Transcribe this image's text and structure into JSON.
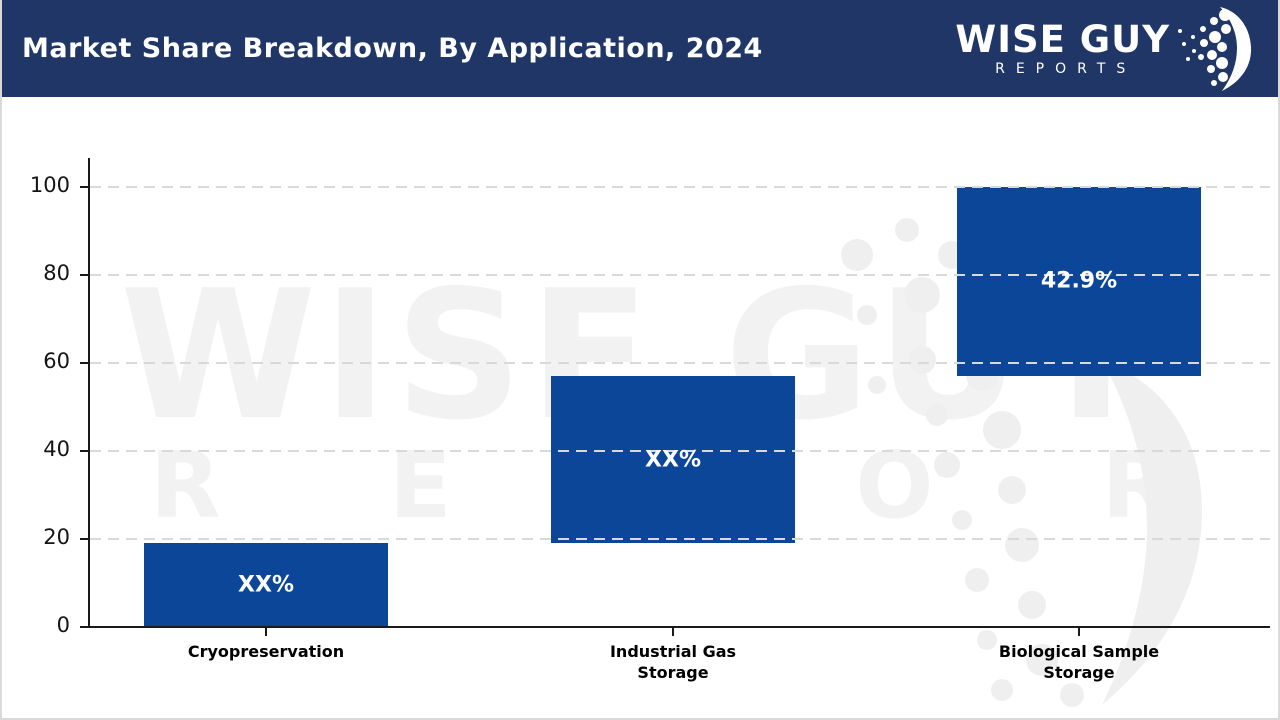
{
  "header": {
    "title": "Market Share Breakdown, By Application, 2024",
    "logo": {
      "line1": "WISE GUY",
      "line2": "REPORTS"
    }
  },
  "watermark": {
    "line1": "WISE GUY",
    "line2": "R E P O R T S"
  },
  "chart_data": {
    "type": "bar",
    "subtype": "floating-waterfall",
    "title": "Market Share Breakdown, By Application, 2024",
    "categories": [
      "Cryopreservation",
      "Industrial Gas Storage",
      "Biological Sample Storage"
    ],
    "category_lines": [
      [
        "Cryopreservation"
      ],
      [
        "Industrial Gas",
        "Storage"
      ],
      [
        "Biological Sample",
        "Storage"
      ]
    ],
    "bars": [
      {
        "category": "Cryopreservation",
        "from": 0,
        "to": 19,
        "label": "XX%"
      },
      {
        "category": "Industrial Gas Storage",
        "from": 19,
        "to": 57.1,
        "label": "XX%"
      },
      {
        "category": "Biological Sample Storage",
        "from": 57.1,
        "to": 100,
        "label": "42.9%"
      }
    ],
    "xlabel": "",
    "ylabel": "",
    "ylim": [
      0,
      100
    ],
    "yticks": [
      0,
      20,
      40,
      60,
      80,
      100
    ],
    "grid": "horizontal-dashed, drawn above bars",
    "legend": "none",
    "colors": {
      "bar": "#0b4699",
      "header_bg": "#1f3666",
      "grid": "#d9d9d9",
      "axis": "#1a1a1a",
      "watermark": "#f2f2f2",
      "frame_border": "#d9d9d9",
      "bar_label_text": "#ffffff",
      "title_text": "#ffffff"
    }
  }
}
